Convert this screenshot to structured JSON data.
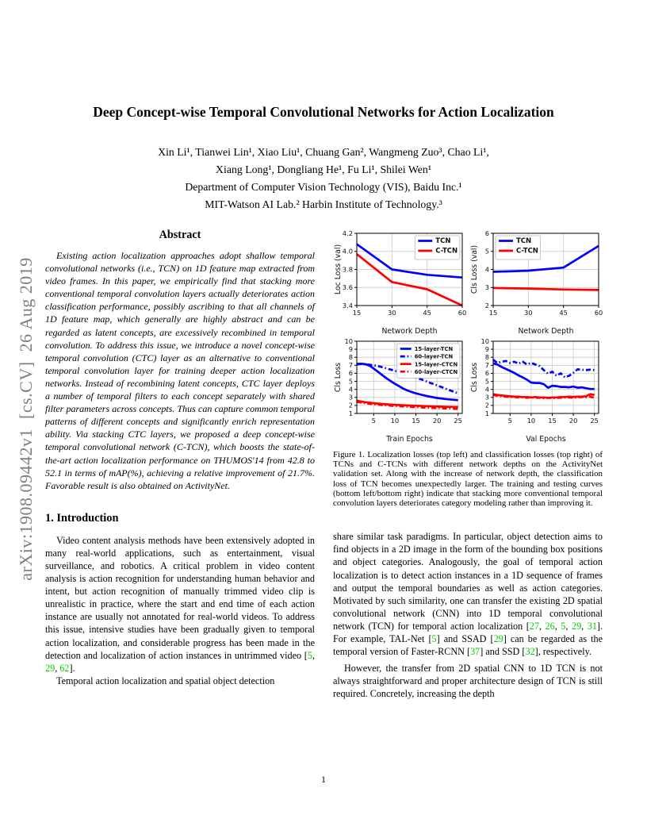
{
  "sidebar": {
    "arxiv_label": "arXiv:1908.09442v1  [cs.CV]  26 Aug 2019"
  },
  "header": {
    "title": "Deep Concept-wise Temporal Convolutional Networks for Action Localization",
    "authors_line1": "Xin Li¹, Tianwei Lin¹, Xiao Liu¹, Chuang Gan², Wangmeng Zuo³, Chao Li¹,",
    "authors_line2": "Xiang Long¹, Dongliang He¹, Fu Li¹, Shilei Wen¹",
    "affiliation_line1": "Department of Computer Vision Technology (VIS), Baidu Inc.¹",
    "affiliation_line2": "MIT-Watson AI Lab.² Harbin Institute of Technology.³"
  },
  "abstract": {
    "heading": "Abstract",
    "text": "Existing action localization approaches adopt shallow temporal convolutional networks (i.e., TCN) on 1D feature map extracted from video frames. In this paper, we empirically find that stacking more conventional temporal convolution layers actually deteriorates action classification performance, possibly ascribing to that all channels of 1D feature map, which generally are highly abstract and can be regarded as latent concepts, are excessively recombined in temporal convolution. To address this issue, we introduce a novel concept-wise temporal convolution (CTC) layer as an alternative to conventional temporal convolution layer for training deeper action localization networks. Instead of recombining latent concepts, CTC layer deploys a number of temporal filters to each concept separately with shared filter parameters across concepts. Thus can capture common temporal patterns of different concepts and significantly enrich representation ability. Via stacking CTC layers, we proposed a deep concept-wise temporal convolutional network (C-TCN), which boosts the state-of-the-art action localization performance on THUMOS'14 from 42.8 to 52.1 in terms of mAP(%), achieving a relative improvement of 21.7%. Favorable result is also obtained on ActivityNet."
  },
  "introduction": {
    "heading": "1. Introduction",
    "p1_segments": [
      {
        "t": "Video content analysis methods have been extensively adopted in many real-world applications, such as entertainment, visual surveillance, and robotics. A critical problem in video content analysis is action recognition for understanding human behavior and intent, but action recognition of manually trimmed video clip is unrealistic in practice, where the start and end time of each action instance are usually not annotated for real-world videos. To address this issue, intensive studies have been gradually given to temporal action localization, and considerable progress has been made in the detection and localization of action instances in untrimmed video ["
      },
      {
        "t": "5",
        "c": "cite"
      },
      {
        "t": ", "
      },
      {
        "t": "29",
        "c": "cite"
      },
      {
        "t": ", "
      },
      {
        "t": "62",
        "c": "cite"
      },
      {
        "t": "]."
      }
    ],
    "p2": "Temporal action localization and spatial object detection"
  },
  "right_column": {
    "p1_segments": [
      {
        "t": "share similar task paradigms. In particular, object detection aims to find objects in a 2D image in the form of the bounding box positions and object categories. Analogously, the goal of temporal action localization is to detect action instances in a 1D sequence of frames and output the temporal boundaries as well as action categories. Motivated by such similarity, one can transfer the existing 2D spatial convolutional network (CNN) into 1D temporal convolutional network (TCN) for temporal action localization ["
      },
      {
        "t": "27",
        "c": "cite"
      },
      {
        "t": ", "
      },
      {
        "t": "26",
        "c": "cite"
      },
      {
        "t": ", "
      },
      {
        "t": "5",
        "c": "cite"
      },
      {
        "t": ", "
      },
      {
        "t": "29",
        "c": "cite"
      },
      {
        "t": ", "
      },
      {
        "t": "31",
        "c": "cite"
      },
      {
        "t": "]. For example, TAL-Net ["
      },
      {
        "t": "5",
        "c": "cite"
      },
      {
        "t": "] and SSAD ["
      },
      {
        "t": "29",
        "c": "cite"
      },
      {
        "t": "] can be regarded as the temporal version of Faster-RCNN ["
      },
      {
        "t": "37",
        "c": "cite"
      },
      {
        "t": "] and SSD ["
      },
      {
        "t": "32",
        "c": "cite"
      },
      {
        "t": "], respectively."
      }
    ],
    "p2": "However, the transfer from 2D spatial CNN to 1D TCN is not always straightforward and proper architecture design of TCN is still required. Concretely, increasing the depth"
  },
  "figure": {
    "caption": "Figure 1. Localization losses (top left) and classification losses (top right) of TCNs and C-TCNs with different network depths on the ActivityNet validation set. Along with the increase of network depth, the classification loss of TCN becomes unexpectedly larger. The training and testing curves (bottom left/bottom right) indicate that stacking more conventional temporal convolution layers deteriorates category modeling rather than improving it."
  },
  "footer": {
    "page_number": "1"
  },
  "colors": {
    "citation_green": "#00CC00",
    "line_blue": "#0000FF",
    "line_red": "#FF0000",
    "arxiv_gray": "#7f7f7f"
  },
  "chart_data": [
    {
      "type": "line",
      "title": "",
      "xlabel": "Network Depth",
      "ylabel": "Loc Loss (val)",
      "x": [
        15,
        30,
        45,
        60
      ],
      "xlim": [
        15,
        60
      ],
      "ylim": [
        3.4,
        4.2
      ],
      "grid": true,
      "xticks": [
        {
          "v": 15,
          "l": "15"
        },
        {
          "v": 30,
          "l": "30"
        },
        {
          "v": 45,
          "l": "45"
        },
        {
          "v": 60,
          "l": "60"
        }
      ],
      "yticks": [
        {
          "v": 3.4,
          "l": "3.4"
        },
        {
          "v": 3.6,
          "l": "3.6"
        },
        {
          "v": 3.8,
          "l": "3.8"
        },
        {
          "v": 4.0,
          "l": "4.0"
        },
        {
          "v": 4.2,
          "l": "4.2"
        }
      ],
      "legend_position": "top-right",
      "series": [
        {
          "name": "TCN",
          "color": "#0000FF",
          "dash": false,
          "y": [
            4.08,
            3.8,
            3.74,
            3.71
          ]
        },
        {
          "name": "C-TCN",
          "color": "#FF0000",
          "dash": false,
          "y": [
            3.97,
            3.66,
            3.58,
            3.4
          ]
        }
      ]
    },
    {
      "type": "line",
      "title": "",
      "xlabel": "Network Depth",
      "ylabel": "Cls Loss (val)",
      "x": [
        15,
        30,
        45,
        60
      ],
      "xlim": [
        15,
        60
      ],
      "ylim": [
        2,
        6
      ],
      "grid": true,
      "xticks": [
        {
          "v": 15,
          "l": "15"
        },
        {
          "v": 30,
          "l": "30"
        },
        {
          "v": 45,
          "l": "45"
        },
        {
          "v": 60,
          "l": "60"
        }
      ],
      "yticks": [
        {
          "v": 2,
          "l": "2"
        },
        {
          "v": 3,
          "l": "3"
        },
        {
          "v": 4,
          "l": "4"
        },
        {
          "v": 5,
          "l": "5"
        },
        {
          "v": 6,
          "l": "6"
        }
      ],
      "legend_position": "top-left",
      "series": [
        {
          "name": "TCN",
          "color": "#0000FF",
          "dash": false,
          "y": [
            3.87,
            3.93,
            4.1,
            5.3
          ]
        },
        {
          "name": "C-TCN",
          "color": "#FF0000",
          "dash": false,
          "y": [
            2.97,
            2.94,
            2.89,
            2.86
          ]
        }
      ]
    },
    {
      "type": "line",
      "title": "",
      "xlabel": "Train Epochs",
      "ylabel": "Cls Loss",
      "x": [
        1,
        2,
        3,
        4,
        5,
        6,
        7,
        8,
        9,
        10,
        11,
        12,
        13,
        14,
        15,
        16,
        17,
        18,
        19,
        20,
        21,
        22,
        23,
        24,
        25
      ],
      "xlim": [
        1,
        26
      ],
      "ylim": [
        1,
        10
      ],
      "grid": true,
      "xticks": [
        {
          "v": 5,
          "l": "5"
        },
        {
          "v": 10,
          "l": "10"
        },
        {
          "v": 15,
          "l": "15"
        },
        {
          "v": 20,
          "l": "20"
        },
        {
          "v": 25,
          "l": "25"
        }
      ],
      "yticks": [
        {
          "v": 1,
          "l": "1"
        },
        {
          "v": 2,
          "l": "2"
        },
        {
          "v": 3,
          "l": "3"
        },
        {
          "v": 4,
          "l": "4"
        },
        {
          "v": 5,
          "l": "5"
        },
        {
          "v": 6,
          "l": "6"
        },
        {
          "v": 7,
          "l": "7"
        },
        {
          "v": 8,
          "l": "8"
        },
        {
          "v": 9,
          "l": "9"
        },
        {
          "v": 10,
          "l": "10"
        }
      ],
      "legend_position": "top-right",
      "series": [
        {
          "name": "15-layer-TCN",
          "color": "#0000FF",
          "dash": false,
          "y": [
            7.1,
            7.2,
            7.15,
            6.95,
            6.6,
            6.2,
            5.8,
            5.4,
            5.05,
            4.7,
            4.4,
            4.1,
            3.87,
            3.67,
            3.5,
            3.37,
            3.25,
            3.13,
            3.03,
            2.93,
            2.87,
            2.8,
            2.75,
            2.7,
            2.65
          ]
        },
        {
          "name": "60-layer-TCN",
          "color": "#0000FF",
          "dash": true,
          "y": [
            7.2,
            7.17,
            7.12,
            7.07,
            7.0,
            6.9,
            6.77,
            6.62,
            6.47,
            6.32,
            6.17,
            6.02,
            5.87,
            5.7,
            5.5,
            5.3,
            5.1,
            4.9,
            4.7,
            4.5,
            4.3,
            4.1,
            3.9,
            3.7,
            3.5
          ]
        },
        {
          "name": "15-layer-CTCN",
          "color": "#FF0000",
          "dash": false,
          "y": [
            2.6,
            2.48,
            2.4,
            2.34,
            2.28,
            2.23,
            2.19,
            2.15,
            2.11,
            2.08,
            2.05,
            2.02,
            2.0,
            1.98,
            1.96,
            1.94,
            1.92,
            1.9,
            1.88,
            1.86,
            1.85,
            1.83,
            1.82,
            1.81,
            1.8
          ]
        },
        {
          "name": "60-layer-CTCN",
          "color": "#FF0000",
          "dash": true,
          "y": [
            2.45,
            2.35,
            2.27,
            2.21,
            2.15,
            2.1,
            2.05,
            2.01,
            1.97,
            1.93,
            1.9,
            1.87,
            1.84,
            1.81,
            1.78,
            1.75,
            1.73,
            1.7,
            1.68,
            1.66,
            1.64,
            1.62,
            1.6,
            1.58,
            1.56
          ]
        }
      ]
    },
    {
      "type": "line",
      "title": "",
      "xlabel": "Val Epochs",
      "ylabel": "Cls Loss",
      "x": [
        1,
        2,
        3,
        4,
        5,
        6,
        7,
        8,
        9,
        10,
        11,
        12,
        13,
        14,
        15,
        16,
        17,
        18,
        19,
        20,
        21,
        22,
        23,
        24,
        25
      ],
      "xlim": [
        1,
        26
      ],
      "ylim": [
        1,
        10
      ],
      "grid": true,
      "xticks": [
        {
          "v": 5,
          "l": "5"
        },
        {
          "v": 10,
          "l": "10"
        },
        {
          "v": 15,
          "l": "15"
        },
        {
          "v": 20,
          "l": "20"
        },
        {
          "v": 25,
          "l": "25"
        }
      ],
      "yticks": [
        {
          "v": 1,
          "l": "1"
        },
        {
          "v": 2,
          "l": "2"
        },
        {
          "v": 3,
          "l": "3"
        },
        {
          "v": 4,
          "l": "4"
        },
        {
          "v": 5,
          "l": "5"
        },
        {
          "v": 6,
          "l": "6"
        },
        {
          "v": 7,
          "l": "7"
        },
        {
          "v": 8,
          "l": "8"
        },
        {
          "v": 9,
          "l": "9"
        },
        {
          "v": 10,
          "l": "10"
        }
      ],
      "legend_position": null,
      "series": [
        {
          "name": "15-layer-TCN",
          "color": "#0000FF",
          "dash": false,
          "y": [
            7.25,
            7.1,
            6.8,
            6.55,
            6.3,
            6.05,
            5.75,
            5.5,
            5.2,
            4.85,
            4.8,
            4.8,
            4.65,
            4.2,
            4.45,
            4.4,
            4.3,
            4.3,
            4.25,
            4.35,
            4.2,
            4.25,
            4.15,
            4.05,
            4.05
          ]
        },
        {
          "name": "60-layer-TCN",
          "color": "#0000FF",
          "dash": true,
          "y": [
            7.7,
            7.3,
            7.45,
            7.55,
            7.3,
            7.45,
            7.2,
            7.45,
            7.1,
            7.3,
            7.1,
            6.9,
            6.4,
            5.95,
            6.2,
            5.7,
            6.0,
            5.5,
            5.7,
            6.05,
            6.5,
            6.45,
            6.4,
            6.45,
            6.4
          ]
        },
        {
          "name": "15-layer-CTCN",
          "color": "#FF0000",
          "dash": false,
          "y": [
            3.4,
            3.3,
            3.25,
            3.2,
            3.15,
            3.1,
            3.1,
            3.05,
            3.05,
            3.0,
            3.05,
            3.0,
            3.0,
            2.95,
            3.0,
            3.0,
            3.05,
            3.05,
            3.1,
            3.05,
            3.1,
            3.1,
            3.15,
            3.4,
            3.3
          ]
        },
        {
          "name": "60-layer-CTCN",
          "color": "#FF0000",
          "dash": true,
          "y": [
            3.3,
            3.2,
            3.15,
            3.1,
            3.05,
            3.05,
            3.0,
            3.0,
            2.95,
            3.0,
            2.95,
            2.95,
            2.9,
            2.95,
            2.9,
            2.95,
            2.95,
            3.0,
            3.0,
            2.95,
            3.0,
            3.05,
            3.0,
            3.1,
            2.95
          ]
        }
      ]
    }
  ]
}
